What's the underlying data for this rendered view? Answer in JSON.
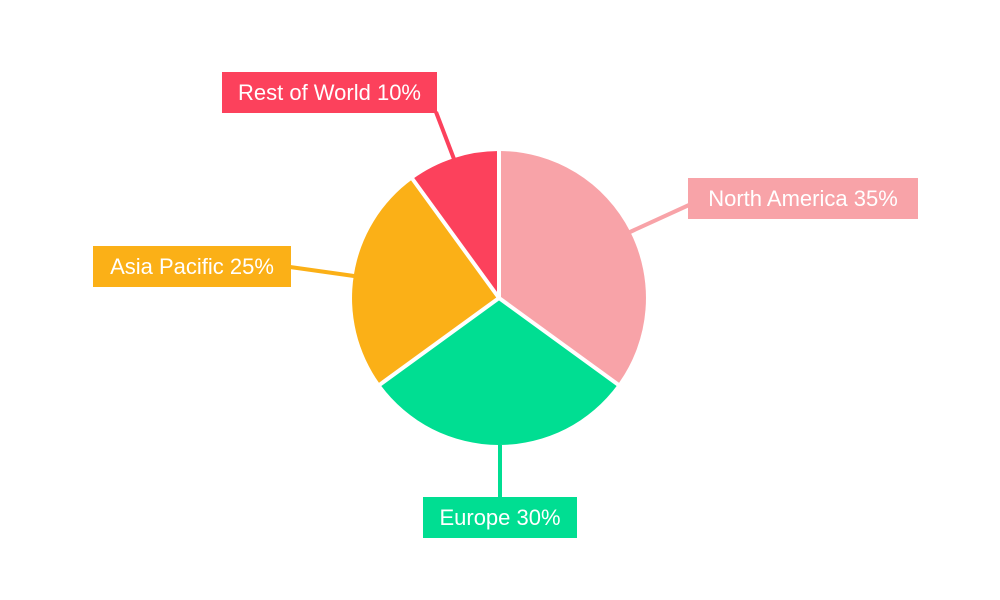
{
  "chart_data": {
    "type": "pie",
    "title": "",
    "background": "#FFFFFF",
    "start_angle_deg": 0,
    "direction": "clockwise",
    "total": 100,
    "segments": [
      {
        "label": "North America",
        "value": 35,
        "percent_label": "35%",
        "display": "North America 35%",
        "color": "#F8A3A8"
      },
      {
        "label": "Europe",
        "value": 30,
        "percent_label": "30%",
        "display": "Europe 30%",
        "color": "#00DE92"
      },
      {
        "label": "Asia Pacific",
        "value": 25,
        "percent_label": "25%",
        "display": "Asia Pacific 25%",
        "color": "#FBB017"
      },
      {
        "label": "Rest of World",
        "value": 10,
        "percent_label": "10%",
        "display": "Rest of World 10%",
        "color": "#FC415C"
      }
    ],
    "label_style": {
      "text_color": "#FFFFFF",
      "leader_lines": true
    },
    "separator_color": "#FFFFFF"
  }
}
